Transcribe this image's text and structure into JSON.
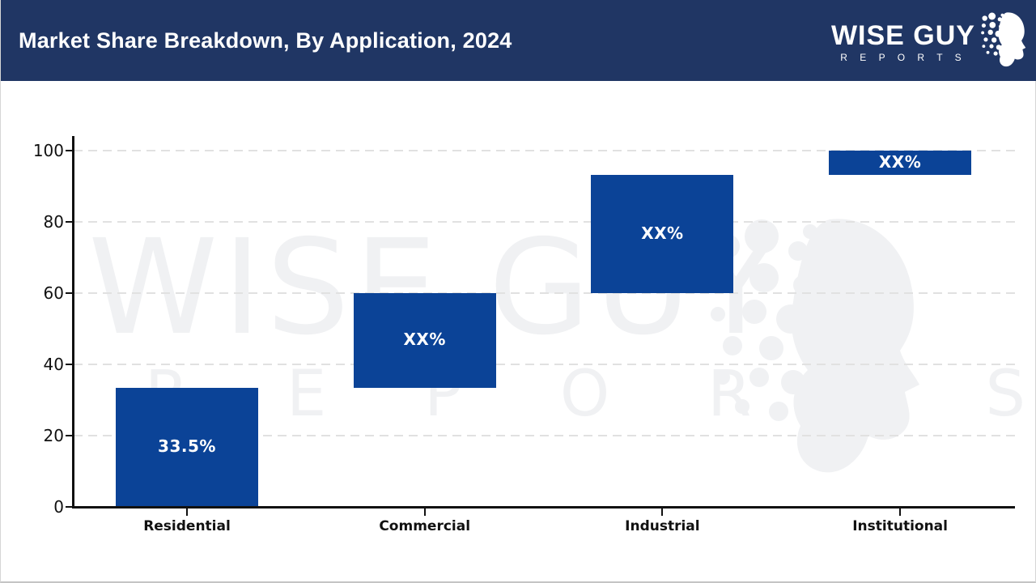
{
  "header": {
    "title": "Market Share Breakdown, By Application, 2024",
    "brand": {
      "name": "WISE GUY",
      "sub": "R E P O R T S"
    }
  },
  "watermark": {
    "line1": "WISE GUY",
    "line2": "R E P O R T S"
  },
  "colors": {
    "header_bg": "#203664",
    "bar": "#0b4397",
    "grid": "#e1e1e1",
    "axis": "#111111",
    "watermark": "#f0f1f3",
    "bar_label_text": "#ffffff"
  },
  "chart_data": {
    "type": "bar",
    "subtype": "waterfall",
    "title": "Market Share Breakdown, By Application, 2024",
    "categories": [
      "Residential",
      "Commercial",
      "Industrial",
      "Institutional"
    ],
    "segments": [
      {
        "category": "Residential",
        "start": 0,
        "end": 33.5,
        "label": "33.5%"
      },
      {
        "category": "Commercial",
        "start": 33.5,
        "end": 60,
        "label": "XX%"
      },
      {
        "category": "Industrial",
        "start": 60,
        "end": 93.2,
        "label": "XX%"
      },
      {
        "category": "Institutional",
        "start": 93.2,
        "end": 100,
        "label": "XX%"
      }
    ],
    "yticks": [
      0,
      20,
      40,
      60,
      80,
      100
    ],
    "ylim": [
      0,
      104
    ],
    "xlabel": "",
    "ylabel": "",
    "grid": "dashed-horizontal",
    "legend": "none",
    "bar_color": "#0b4397"
  }
}
